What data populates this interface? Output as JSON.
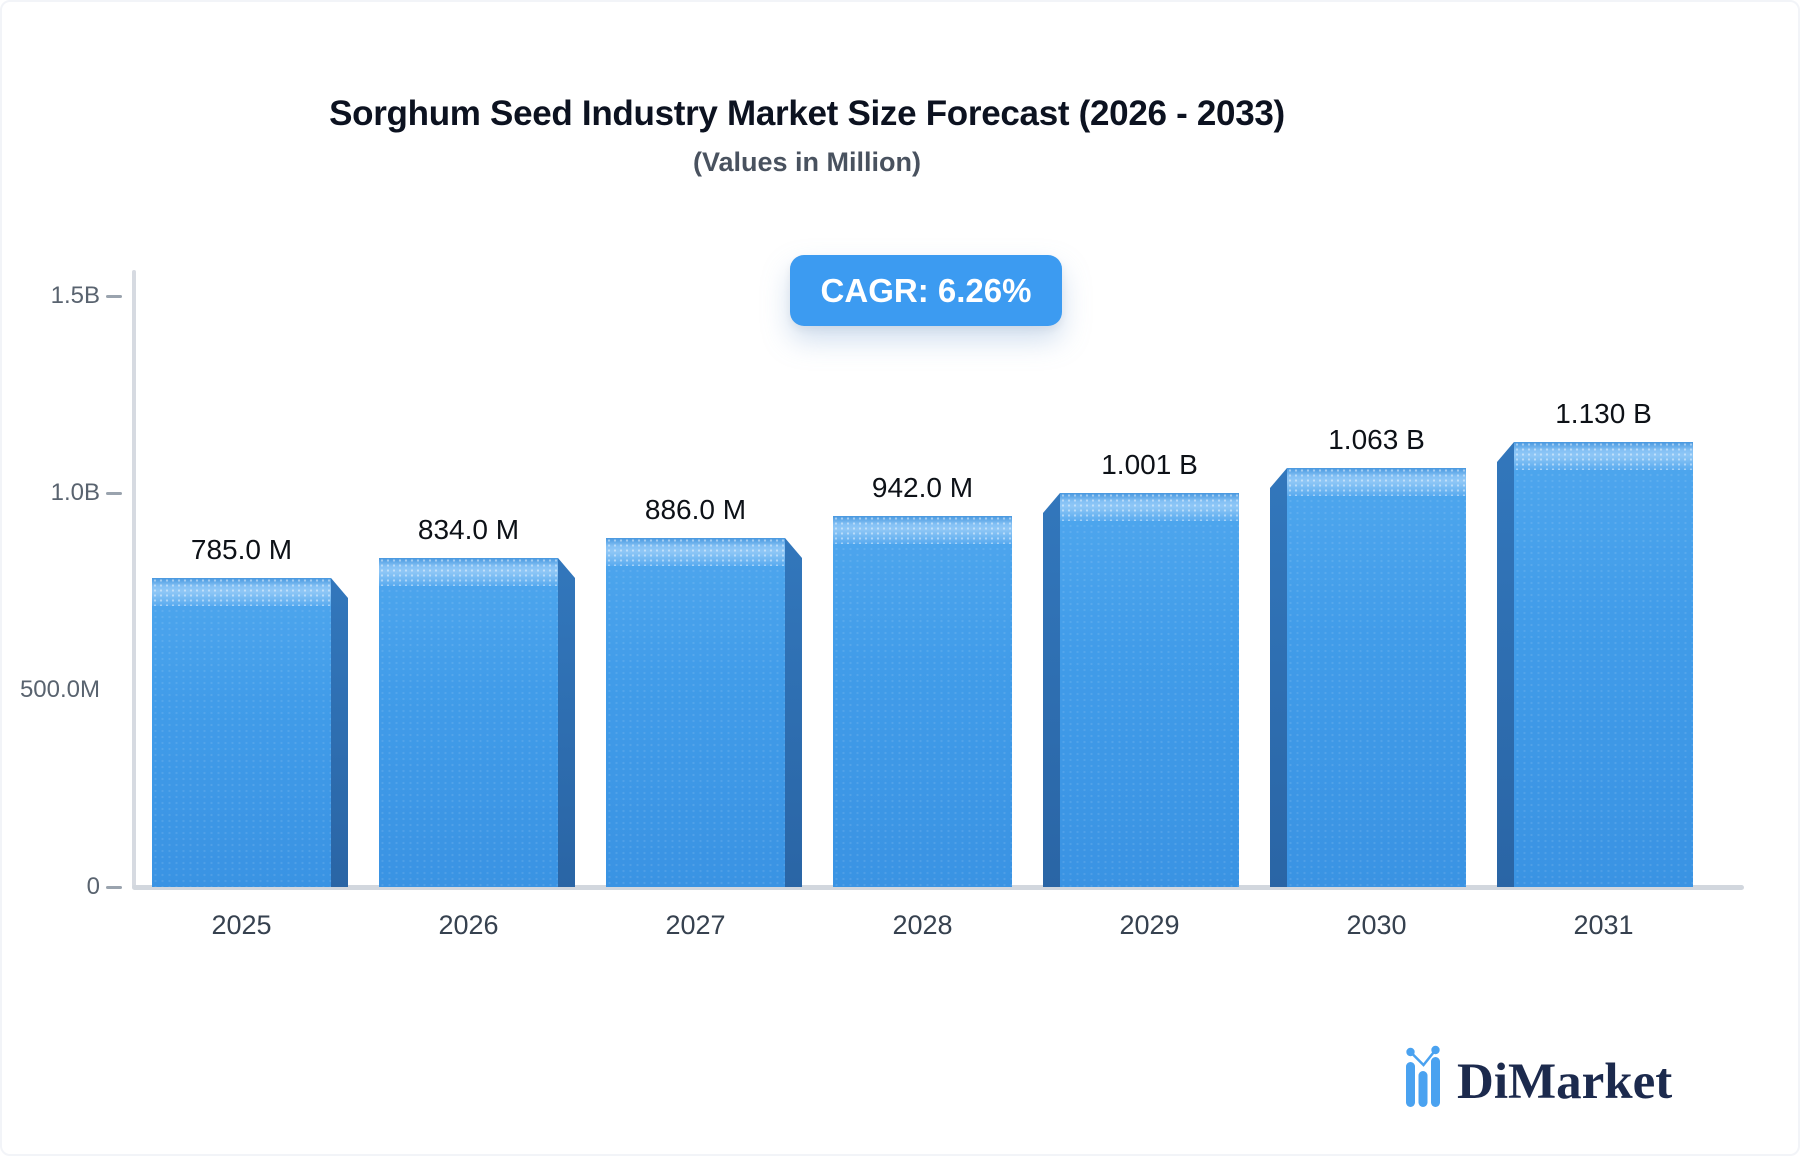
{
  "header": {
    "title": "Sorghum Seed Industry Market Size Forecast (2026 - 2033)",
    "subtitle": "(Values in Million)"
  },
  "badge": {
    "label": "CAGR: 6.26%"
  },
  "brand": {
    "name": "DiMarket"
  },
  "icons": {
    "brand": "mini-bar-chart-icon"
  },
  "colors": {
    "badge_bg": "#3C9BF1",
    "bar_face": "#419CE9",
    "bar_top": "#85C1F5",
    "bar_side": "#3277BC",
    "axis": "#D6DAE1",
    "logo_blue": "#4AA2F0",
    "logo_text": "#1C2A4D"
  },
  "chart_data": {
    "type": "bar",
    "title": "Sorghum Seed Industry Market Size Forecast (2026 - 2033)",
    "subtitle": "(Values in Million)",
    "cagr_percent": 6.26,
    "categories": [
      "2025",
      "2026",
      "2027",
      "2028",
      "2029",
      "2030",
      "2031"
    ],
    "values": [
      785,
      834,
      886,
      942,
      1001,
      1063,
      1130
    ],
    "unit": "millions",
    "value_labels": [
      "785.0 M",
      "834.0 M",
      "886.0 M",
      "942.0 M",
      "1.001 B",
      "1.063 B",
      "1.130 B"
    ],
    "xlabel": "",
    "ylabel": "",
    "ylim": [
      0,
      1500
    ],
    "y_axis": {
      "max_millions": 1500,
      "ticks": [
        {
          "label": "0",
          "value": 0,
          "dash": true
        },
        {
          "label": "500.0M",
          "value": 500,
          "dash": false
        },
        {
          "label": "1.0B",
          "value": 1000,
          "dash": true
        },
        {
          "label": "1.5B",
          "value": 1500,
          "dash": true
        }
      ]
    },
    "grid": false,
    "legend": "none"
  }
}
